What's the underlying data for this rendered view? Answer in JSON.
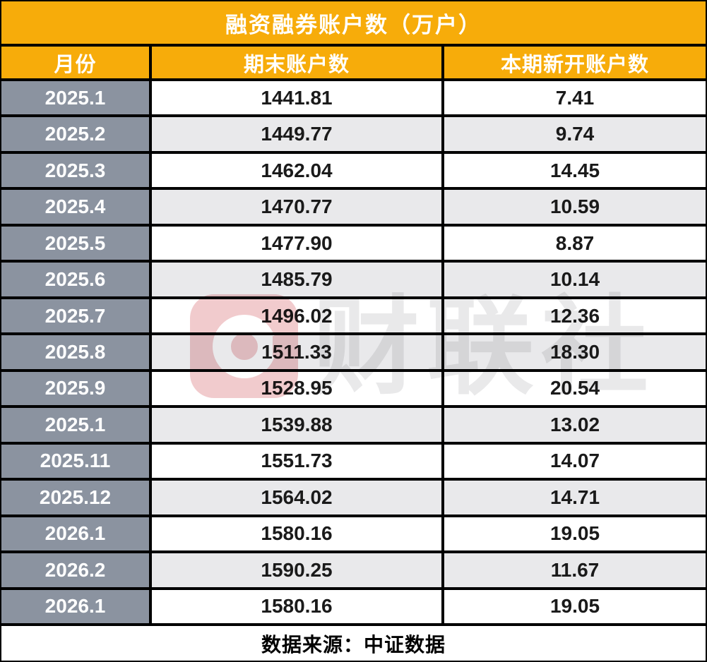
{
  "title": "融资融券账户数（万户）",
  "columns": [
    "月份",
    "期末账户数",
    "本期新开账户数"
  ],
  "footer": {
    "source": "数据来源：中证数据"
  },
  "watermark": {
    "logo_letter": "C",
    "text": "财联社"
  },
  "colors": {
    "header_bg": "#F7AC0A",
    "month_bg": "#8B93A0",
    "alt_row_bg": "#E9E9EB",
    "border": "#000000",
    "watermark_pink": "#F1CBCD",
    "watermark_gray": "#E9E9EA"
  },
  "chart_data": {
    "type": "table",
    "title": "融资融券账户数（万户）",
    "categories": [
      "2025.1",
      "2025.2",
      "2025.3",
      "2025.4",
      "2025.5",
      "2025.6",
      "2025.7",
      "2025.8",
      "2025.9",
      "2025.1",
      "2025.11",
      "2025.12",
      "2026.1",
      "2026.2",
      "2026.1"
    ],
    "series": [
      {
        "name": "期末账户数",
        "values": [
          1441.81,
          1449.77,
          1462.04,
          1470.77,
          1477.9,
          1485.79,
          1496.02,
          1511.33,
          1528.95,
          1539.88,
          1551.73,
          1564.02,
          1580.16,
          1590.25,
          1580.16
        ]
      },
      {
        "name": "本期新开账户数",
        "values": [
          7.41,
          9.74,
          14.45,
          10.59,
          8.87,
          10.14,
          12.36,
          18.3,
          20.54,
          13.02,
          14.07,
          14.71,
          19.05,
          11.67,
          19.05
        ]
      }
    ],
    "source": "数据来源：中证数据"
  },
  "rows": [
    {
      "month": "2025.1",
      "end_accounts": "1441.81",
      "new_accounts": "7.41"
    },
    {
      "month": "2025.2",
      "end_accounts": "1449.77",
      "new_accounts": "9.74"
    },
    {
      "month": "2025.3",
      "end_accounts": "1462.04",
      "new_accounts": "14.45"
    },
    {
      "month": "2025.4",
      "end_accounts": "1470.77",
      "new_accounts": "10.59"
    },
    {
      "month": "2025.5",
      "end_accounts": "1477.90",
      "new_accounts": "8.87"
    },
    {
      "month": "2025.6",
      "end_accounts": "1485.79",
      "new_accounts": "10.14"
    },
    {
      "month": "2025.7",
      "end_accounts": "1496.02",
      "new_accounts": "12.36"
    },
    {
      "month": "2025.8",
      "end_accounts": "1511.33",
      "new_accounts": "18.30"
    },
    {
      "month": "2025.9",
      "end_accounts": "1528.95",
      "new_accounts": "20.54"
    },
    {
      "month": "2025.1",
      "end_accounts": "1539.88",
      "new_accounts": "13.02"
    },
    {
      "month": "2025.11",
      "end_accounts": "1551.73",
      "new_accounts": "14.07"
    },
    {
      "month": "2025.12",
      "end_accounts": "1564.02",
      "new_accounts": "14.71"
    },
    {
      "month": "2026.1",
      "end_accounts": "1580.16",
      "new_accounts": "19.05"
    },
    {
      "month": "2026.2",
      "end_accounts": "1590.25",
      "new_accounts": "11.67"
    },
    {
      "month": "2026.1",
      "end_accounts": "1580.16",
      "new_accounts": "19.05"
    }
  ]
}
